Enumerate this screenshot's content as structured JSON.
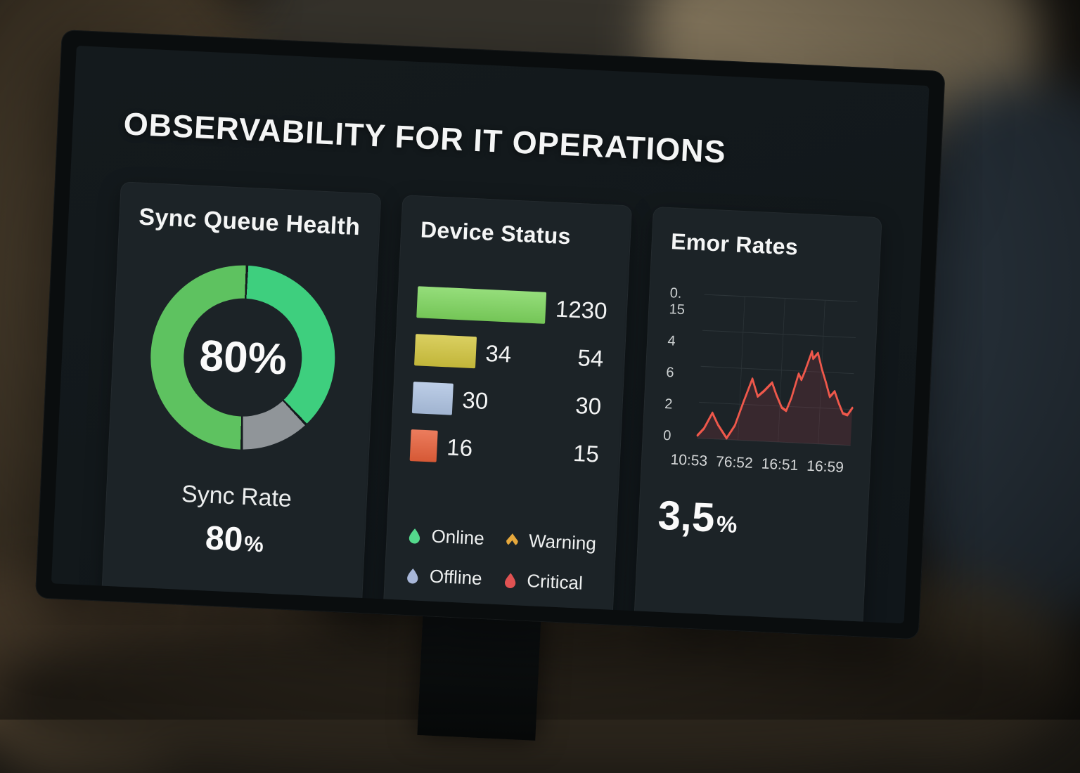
{
  "dashboard": {
    "title": "OBSERVABILITY FOR IT OPERATIONS",
    "panels": {
      "sync": {
        "title": "Sync Queue Health",
        "center_value": "80%",
        "metric_label": "Sync Rate",
        "metric_value": "80",
        "metric_unit": "%",
        "donut": {
          "separator_color": "#151b1e",
          "segments": [
            {
              "name": "synced-right",
              "color": "#3ecf7e",
              "from": 0,
              "to": 134
            },
            {
              "name": "pending-gray",
              "color": "#909599",
              "from": 134,
              "to": 178
            },
            {
              "name": "synced-left",
              "color": "#5ec260",
              "from": 178,
              "to": 360
            }
          ]
        }
      },
      "device": {
        "title": "Device Status",
        "rows": [
          {
            "label": "1230",
            "right_value": "",
            "color": "#7ed65e",
            "width_pct": 79
          },
          {
            "label": "34",
            "right_value": "54",
            "color": "#d2c53e",
            "width_pct": 32
          },
          {
            "label": "30",
            "right_value": "30",
            "color": "#aec3e2",
            "width_pct": 21
          },
          {
            "label": "16",
            "right_value": "15",
            "color": "#e8603a",
            "width_pct": 14
          }
        ],
        "legend": [
          {
            "label": "Online",
            "color": "#54d98c",
            "icon": "drop"
          },
          {
            "label": "Warning",
            "color": "#e6a83c",
            "icon": "flame"
          },
          {
            "label": "Offline",
            "color": "#a8b7d9",
            "icon": "drop"
          },
          {
            "label": "Critical",
            "color": "#e05252",
            "icon": "drop"
          }
        ]
      },
      "errors": {
        "title": "Emor Rates",
        "summary_value": "3,5",
        "summary_unit": "%",
        "chart_data": {
          "type": "area",
          "title": "Emor Rates",
          "y_tick_labels": [
            "0. 15",
            "4",
            "6",
            "2",
            "0"
          ],
          "x_tick_labels": [
            "10:53",
            "76:52",
            "16:51",
            "16:59"
          ],
          "value_range": [
            0,
            1
          ],
          "grid": true,
          "line_color": "#ef584b",
          "fill_color": "rgba(205,70,88,0.16)",
          "points": [
            [
              0,
              0.02
            ],
            [
              4,
              0.07
            ],
            [
              9,
              0.18
            ],
            [
              13,
              0.1
            ],
            [
              19,
              0.01
            ],
            [
              24,
              0.1
            ],
            [
              29,
              0.27
            ],
            [
              34,
              0.43
            ],
            [
              38,
              0.31
            ],
            [
              42,
              0.35
            ],
            [
              47,
              0.41
            ],
            [
              50,
              0.33
            ],
            [
              54,
              0.24
            ],
            [
              57,
              0.22
            ],
            [
              60,
              0.31
            ],
            [
              64,
              0.48
            ],
            [
              66,
              0.44
            ],
            [
              68,
              0.5
            ],
            [
              72,
              0.64
            ],
            [
              73,
              0.59
            ],
            [
              76,
              0.63
            ],
            [
              79,
              0.52
            ],
            [
              82,
              0.43
            ],
            [
              85,
              0.33
            ],
            [
              88,
              0.37
            ],
            [
              91,
              0.29
            ],
            [
              94,
              0.22
            ],
            [
              97,
              0.21
            ],
            [
              100,
              0.26
            ]
          ]
        }
      }
    }
  }
}
